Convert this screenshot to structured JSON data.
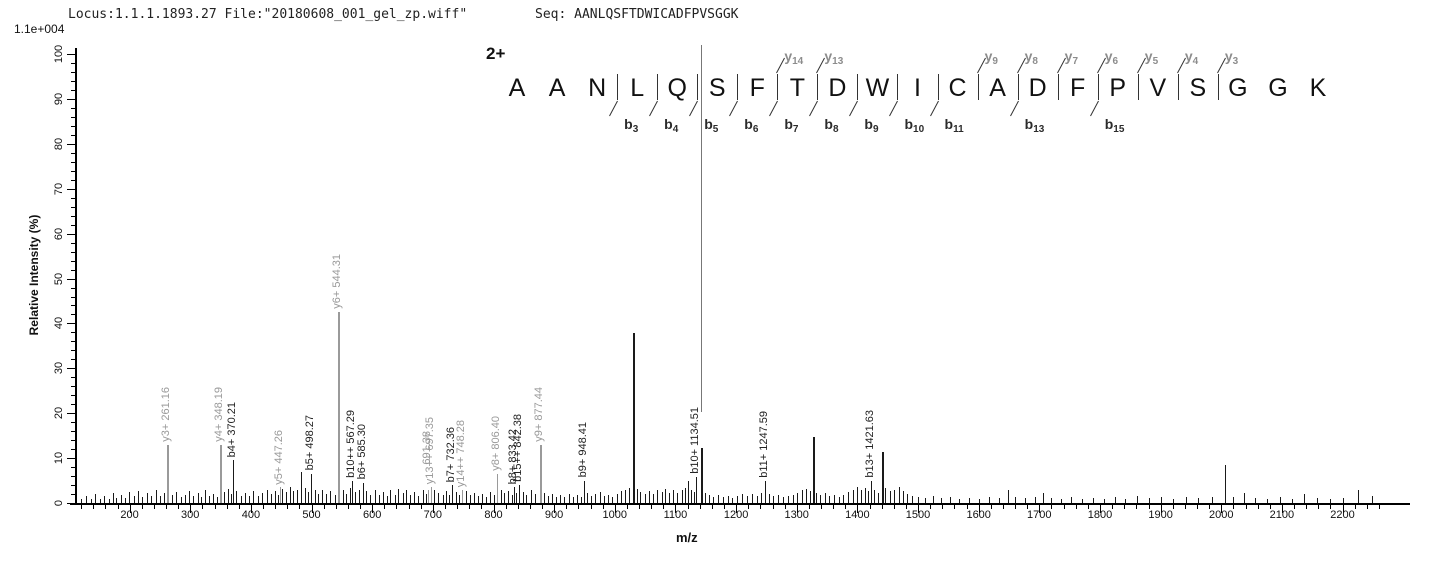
{
  "header": {
    "locus_file": "Locus:1.1.1.1893.27 File:\"20180608_001_gel_zp.wiff\"",
    "seq_label": "Seq: AANLQSFTDWICADFPVSGGK",
    "intensity_scale": "1.1e+004"
  },
  "sequence_panel": {
    "charge_label": "2+",
    "residues": [
      "A",
      "A",
      "N",
      "L",
      "Q",
      "S",
      "F",
      "T",
      "D",
      "W",
      "I",
      "C",
      "A",
      "D",
      "F",
      "P",
      "V",
      "S",
      "G",
      "G",
      "K"
    ],
    "y_ions": [
      {
        "name": "y",
        "sub": "14",
        "after_residue": 7
      },
      {
        "name": "y",
        "sub": "13",
        "after_residue": 8
      },
      {
        "name": "y",
        "sub": "9",
        "after_residue": 12
      },
      {
        "name": "y",
        "sub": "8",
        "after_residue": 13
      },
      {
        "name": "y",
        "sub": "7",
        "after_residue": 14
      },
      {
        "name": "y",
        "sub": "6",
        "after_residue": 15
      },
      {
        "name": "y",
        "sub": "5",
        "after_residue": 16
      },
      {
        "name": "y",
        "sub": "4",
        "after_residue": 17
      },
      {
        "name": "y",
        "sub": "3",
        "after_residue": 18
      }
    ],
    "b_ions": [
      {
        "name": "b",
        "sub": "3",
        "after_residue": 3
      },
      {
        "name": "b",
        "sub": "4",
        "after_residue": 4
      },
      {
        "name": "b",
        "sub": "5",
        "after_residue": 5
      },
      {
        "name": "b",
        "sub": "6",
        "after_residue": 6
      },
      {
        "name": "b",
        "sub": "7",
        "after_residue": 7
      },
      {
        "name": "b",
        "sub": "8",
        "after_residue": 8
      },
      {
        "name": "b",
        "sub": "9",
        "after_residue": 9
      },
      {
        "name": "b",
        "sub": "10",
        "after_residue": 10
      },
      {
        "name": "b",
        "sub": "11",
        "after_residue": 11
      },
      {
        "name": "b",
        "sub": "13",
        "after_residue": 13
      },
      {
        "name": "b",
        "sub": "15",
        "after_residue": 15
      }
    ],
    "precursor_after_residue": 5
  },
  "chart_data": {
    "type": "bar",
    "title": "",
    "xlabel": "m/z",
    "ylabel": "Relative  Intensity (%)",
    "xlim": [
      110,
      2270
    ],
    "ylim": [
      0,
      100
    ],
    "grid": false,
    "x_tick_labels": [
      200,
      300,
      400,
      500,
      600,
      700,
      800,
      900,
      1000,
      1100,
      1200,
      1300,
      1400,
      1500,
      1600,
      1700,
      1800,
      1900,
      2000,
      2100,
      2200
    ],
    "y_tick_labels": [
      0,
      10,
      20,
      30,
      40,
      50,
      60,
      70,
      80,
      90,
      100
    ],
    "precursor": {
      "mz": 1142.5,
      "peak_pct": 12.2,
      "marker_to_pct": 20.3,
      "charge_label": "2+"
    },
    "peaks": [
      {
        "mz": 261.16,
        "pct": 13.0,
        "label": "y3+ 261.16",
        "series": "y"
      },
      {
        "mz": 348.19,
        "pct": 13.0,
        "label": "y4+ 348.19",
        "series": "y"
      },
      {
        "mz": 370.21,
        "pct": 9.5,
        "label": "b4+ 370.21",
        "series": "b"
      },
      {
        "mz": 447.26,
        "pct": 3.5,
        "label": "y5+ 447.26",
        "series": "y"
      },
      {
        "mz": 483.0,
        "pct": 6.9,
        "label": "",
        "series": "none"
      },
      {
        "mz": 498.27,
        "pct": 6.5,
        "label": "b5+ 498.27",
        "series": "b"
      },
      {
        "mz": 544.31,
        "pct": 42.5,
        "label": "y6+ 544.31",
        "series": "y"
      },
      {
        "mz": 567.29,
        "pct": 5.0,
        "label": "b10++ 567.29",
        "series": "b"
      },
      {
        "mz": 585.3,
        "pct": 4.5,
        "label": "b6+ 585.30",
        "series": "b"
      },
      {
        "mz": 691.38,
        "pct": 3.0,
        "label": "691.38",
        "series": "y",
        "lift": 22
      },
      {
        "mz": 697.35,
        "pct": 3.5,
        "label": "y13++ 697.35",
        "series": "y"
      },
      {
        "mz": 732.36,
        "pct": 4.0,
        "label": "b7+ 732.36",
        "series": "b"
      },
      {
        "mz": 748.28,
        "pct": 2.8,
        "label": "y14++ 748.28",
        "series": "y"
      },
      {
        "mz": 806.4,
        "pct": 6.5,
        "label": "y8+ 806.40",
        "series": "y"
      },
      {
        "mz": 833.42,
        "pct": 3.5,
        "label": "b8+ 833.42",
        "series": "b"
      },
      {
        "mz": 842.38,
        "pct": 4.0,
        "label": "b15++ 842.38",
        "series": "b"
      },
      {
        "mz": 877.44,
        "pct": 13.0,
        "label": "y9+ 877.44",
        "series": "y"
      },
      {
        "mz": 948.41,
        "pct": 5.0,
        "label": "b9+ 948.41",
        "series": "b"
      },
      {
        "mz": 1030.0,
        "pct": 37.9,
        "label": "",
        "series": "none"
      },
      {
        "mz": 1120.0,
        "pct": 5.0,
        "label": "",
        "series": "none"
      },
      {
        "mz": 1134.51,
        "pct": 5.8,
        "label": "b10+ 1134.51",
        "series": "b"
      },
      {
        "mz": 1142.5,
        "pct": 12.2,
        "label": "",
        "series": "none"
      },
      {
        "mz": 1247.59,
        "pct": 5.0,
        "label": "b11+ 1247.59",
        "series": "b"
      },
      {
        "mz": 1326.0,
        "pct": 14.7,
        "label": "",
        "series": "none"
      },
      {
        "mz": 1421.63,
        "pct": 5.0,
        "label": "b13+ 1421.63",
        "series": "b"
      },
      {
        "mz": 1440.0,
        "pct": 11.4,
        "label": "",
        "series": "none"
      },
      {
        "mz": 2006.0,
        "pct": 8.5,
        "label": "",
        "series": "none"
      }
    ],
    "noise_peaks": [
      [
        120,
        1.0
      ],
      [
        128,
        1.5
      ],
      [
        136,
        1.0
      ],
      [
        143,
        2.0
      ],
      [
        151,
        1.0
      ],
      [
        158,
        1.5
      ],
      [
        166,
        1.0
      ],
      [
        172,
        2.2
      ],
      [
        178,
        1.2
      ],
      [
        186,
        1.8
      ],
      [
        193,
        1.2
      ],
      [
        199,
        2.4
      ],
      [
        207,
        1.5
      ],
      [
        213,
        2.6
      ],
      [
        221,
        1.4
      ],
      [
        228,
        2.2
      ],
      [
        236,
        1.5
      ],
      [
        243,
        2.8
      ],
      [
        250,
        1.6
      ],
      [
        256,
        2.2
      ],
      [
        263,
        3.2
      ],
      [
        270,
        1.8
      ],
      [
        277,
        2.4
      ],
      [
        284,
        1.4
      ],
      [
        291,
        1.8
      ],
      [
        298,
        2.6
      ],
      [
        305,
        1.5
      ],
      [
        312,
        2.2
      ],
      [
        318,
        1.4
      ],
      [
        324,
        3.0
      ],
      [
        331,
        1.6
      ],
      [
        338,
        2.0
      ],
      [
        344,
        1.3
      ],
      [
        355,
        2.4
      ],
      [
        362,
        3.2
      ],
      [
        367,
        2.0
      ],
      [
        376,
        2.6
      ],
      [
        383,
        1.6
      ],
      [
        390,
        2.2
      ],
      [
        397,
        1.5
      ],
      [
        404,
        2.6
      ],
      [
        411,
        1.6
      ],
      [
        418,
        2.2
      ],
      [
        426,
        3.0
      ],
      [
        433,
        2.0
      ],
      [
        439,
        2.6
      ],
      [
        444,
        1.8
      ],
      [
        452,
        3.2
      ],
      [
        458,
        2.4
      ],
      [
        465,
        3.6
      ],
      [
        470,
        2.6
      ],
      [
        476,
        3.0
      ],
      [
        489,
        3.4
      ],
      [
        494,
        2.4
      ],
      [
        505,
        2.8
      ],
      [
        511,
        2.0
      ],
      [
        518,
        3.0
      ],
      [
        524,
        2.0
      ],
      [
        531,
        2.6
      ],
      [
        538,
        1.8
      ],
      [
        551,
        2.8
      ],
      [
        557,
        2.0
      ],
      [
        563,
        3.4
      ],
      [
        572,
        2.4
      ],
      [
        578,
        3.0
      ],
      [
        590,
        2.6
      ],
      [
        597,
        1.8
      ],
      [
        604,
        2.8
      ],
      [
        611,
        1.8
      ],
      [
        617,
        2.4
      ],
      [
        624,
        1.6
      ],
      [
        630,
        2.8
      ],
      [
        637,
        1.8
      ],
      [
        643,
        3.2
      ],
      [
        650,
        2.2
      ],
      [
        656,
        2.8
      ],
      [
        663,
        1.8
      ],
      [
        669,
        2.4
      ],
      [
        676,
        1.6
      ],
      [
        683,
        2.8
      ],
      [
        688,
        2.0
      ],
      [
        702,
        3.0
      ],
      [
        709,
        2.2
      ],
      [
        716,
        1.8
      ],
      [
        722,
        2.6
      ],
      [
        727,
        1.8
      ],
      [
        738,
        2.4
      ],
      [
        743,
        1.8
      ],
      [
        755,
        2.6
      ],
      [
        762,
        1.8
      ],
      [
        768,
        2.2
      ],
      [
        775,
        1.5
      ],
      [
        781,
        2.0
      ],
      [
        788,
        1.4
      ],
      [
        794,
        2.4
      ],
      [
        800,
        1.8
      ],
      [
        812,
        3.0
      ],
      [
        818,
        2.2
      ],
      [
        824,
        2.6
      ],
      [
        830,
        1.8
      ],
      [
        837,
        2.2
      ],
      [
        848,
        2.4
      ],
      [
        854,
        1.8
      ],
      [
        861,
        2.8
      ],
      [
        868,
        2.0
      ],
      [
        884,
        2.2
      ],
      [
        890,
        1.6
      ],
      [
        897,
        2.0
      ],
      [
        903,
        1.4
      ],
      [
        910,
        1.8
      ],
      [
        917,
        1.3
      ],
      [
        924,
        2.0
      ],
      [
        931,
        1.4
      ],
      [
        938,
        1.8
      ],
      [
        944,
        1.3
      ],
      [
        954,
        2.2
      ],
      [
        961,
        1.5
      ],
      [
        968,
        2.0
      ],
      [
        975,
        2.4
      ],
      [
        982,
        1.6
      ],
      [
        989,
        1.9
      ],
      [
        996,
        1.4
      ],
      [
        1003,
        2.0
      ],
      [
        1010,
        2.6
      ],
      [
        1017,
        3.0
      ],
      [
        1024,
        3.4
      ],
      [
        1036,
        3.2
      ],
      [
        1042,
        2.4
      ],
      [
        1049,
        2.0
      ],
      [
        1056,
        2.6
      ],
      [
        1063,
        2.0
      ],
      [
        1070,
        3.0
      ],
      [
        1077,
        2.4
      ],
      [
        1083,
        3.2
      ],
      [
        1090,
        2.2
      ],
      [
        1096,
        3.0
      ],
      [
        1103,
        2.2
      ],
      [
        1110,
        2.8
      ],
      [
        1116,
        3.4
      ],
      [
        1126,
        3.0
      ],
      [
        1131,
        2.4
      ],
      [
        1149,
        2.2
      ],
      [
        1155,
        1.8
      ],
      [
        1162,
        1.4
      ],
      [
        1170,
        1.8
      ],
      [
        1178,
        1.3
      ],
      [
        1186,
        1.6
      ],
      [
        1194,
        1.2
      ],
      [
        1202,
        1.6
      ],
      [
        1210,
        2.0
      ],
      [
        1218,
        1.5
      ],
      [
        1226,
        2.0
      ],
      [
        1234,
        1.6
      ],
      [
        1241,
        2.2
      ],
      [
        1254,
        2.0
      ],
      [
        1261,
        1.5
      ],
      [
        1269,
        1.8
      ],
      [
        1277,
        1.3
      ],
      [
        1285,
        1.6
      ],
      [
        1293,
        1.9
      ],
      [
        1301,
        2.2
      ],
      [
        1309,
        2.8
      ],
      [
        1316,
        3.2
      ],
      [
        1322,
        2.6
      ],
      [
        1331,
        2.2
      ],
      [
        1338,
        1.8
      ],
      [
        1346,
        2.2
      ],
      [
        1353,
        1.6
      ],
      [
        1361,
        1.9
      ],
      [
        1369,
        1.4
      ],
      [
        1377,
        1.8
      ],
      [
        1385,
        2.4
      ],
      [
        1392,
        3.0
      ],
      [
        1399,
        3.6
      ],
      [
        1406,
        3.0
      ],
      [
        1412,
        3.4
      ],
      [
        1418,
        2.6
      ],
      [
        1427,
        2.8
      ],
      [
        1434,
        2.2
      ],
      [
        1446,
        3.4
      ],
      [
        1453,
        2.6
      ],
      [
        1461,
        3.0
      ],
      [
        1468,
        3.6
      ],
      [
        1475,
        2.6
      ],
      [
        1482,
        2.0
      ],
      [
        1490,
        1.6
      ],
      [
        1500,
        1.3
      ],
      [
        1512,
        1.2
      ],
      [
        1525,
        1.5
      ],
      [
        1538,
        1.1
      ],
      [
        1552,
        1.3
      ],
      [
        1567,
        1.0
      ],
      [
        1584,
        1.2
      ],
      [
        1600,
        1.0
      ],
      [
        1617,
        1.4
      ],
      [
        1633,
        1.1
      ],
      [
        1648,
        2.8
      ],
      [
        1660,
        1.3
      ],
      [
        1676,
        1.1
      ],
      [
        1692,
        1.4
      ],
      [
        1706,
        2.2
      ],
      [
        1720,
        1.2
      ],
      [
        1736,
        1.0
      ],
      [
        1752,
        1.3
      ],
      [
        1770,
        1.0
      ],
      [
        1788,
        1.2
      ],
      [
        1806,
        1.0
      ],
      [
        1824,
        1.3
      ],
      [
        1842,
        1.0
      ],
      [
        1861,
        1.5
      ],
      [
        1880,
        1.1
      ],
      [
        1900,
        1.3
      ],
      [
        1920,
        1.0
      ],
      [
        1941,
        1.4
      ],
      [
        1962,
        1.1
      ],
      [
        1984,
        1.3
      ],
      [
        2019,
        1.4
      ],
      [
        2037,
        2.2
      ],
      [
        2055,
        1.2
      ],
      [
        2075,
        1.0
      ],
      [
        2096,
        1.3
      ],
      [
        2117,
        1.0
      ],
      [
        2136,
        2.0
      ],
      [
        2158,
        1.2
      ],
      [
        2180,
        1.0
      ],
      [
        2200,
        1.2
      ],
      [
        2226,
        3.0
      ],
      [
        2248,
        1.6
      ]
    ]
  },
  "colors": {
    "b_series": "#1a1a1a",
    "y_series": "#9a9a9a",
    "noise": "#1a1a1a",
    "precursor_marker": "#777777",
    "axis": "#000000"
  }
}
